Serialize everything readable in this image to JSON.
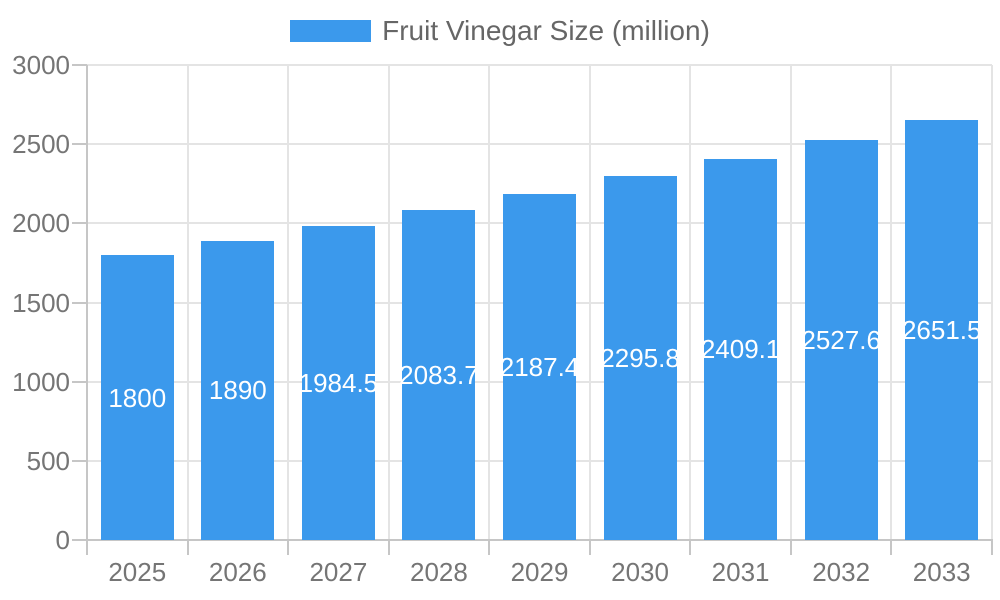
{
  "chart_data": {
    "type": "bar",
    "title": "Fruit Vinegar Size (million)",
    "categories": [
      "2025",
      "2026",
      "2027",
      "2028",
      "2029",
      "2030",
      "2031",
      "2032",
      "2033"
    ],
    "series": [
      {
        "name": "Fruit Vinegar Size (million)",
        "values": [
          1800,
          1890,
          1984.5,
          2083.7,
          2187.4,
          2295.8,
          2409.1,
          2527.6,
          2651.5
        ]
      }
    ],
    "value_labels": [
      "1800",
      "1890",
      "1984.5",
      "2083.7",
      "2187.4",
      "2295.8",
      "2409.1",
      "2527.6",
      "2651.5"
    ],
    "xlabel": "",
    "ylabel": "",
    "ylim": [
      0,
      3000
    ],
    "yticks": [
      0,
      500,
      1000,
      1500,
      2000,
      2500,
      3000
    ],
    "grid": true,
    "legend_position": "top-center",
    "value_label_position": "middle-of-bar",
    "colors": {
      "bar": "#3B99EC",
      "value_label": "#FFFFFF",
      "axis_label": "#757575",
      "legend_text": "#666666",
      "gridline": "#E4E4E4",
      "axis_line": "#C6C6C6",
      "background": "#FFFFFF"
    }
  }
}
